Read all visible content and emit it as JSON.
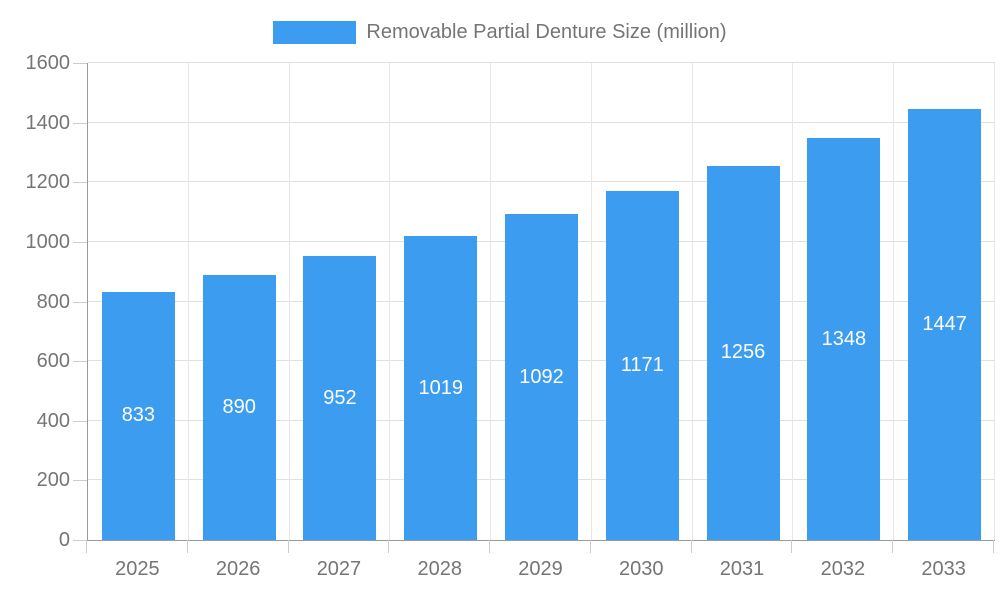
{
  "legend": {
    "label": "Removable Partial Denture Size (million)",
    "swatch_color": "#3b9cf0"
  },
  "chart_data": {
    "type": "bar",
    "title": "Removable Partial Denture Size (million)",
    "categories": [
      "2025",
      "2026",
      "2027",
      "2028",
      "2029",
      "2030",
      "2031",
      "2032",
      "2033"
    ],
    "values": [
      833,
      890,
      952,
      1019,
      1092,
      1171,
      1256,
      1348,
      1447
    ],
    "xlabel": "",
    "ylabel": "",
    "ylim": [
      0,
      1600
    ],
    "yticks": [
      0,
      200,
      400,
      600,
      800,
      1000,
      1200,
      1400,
      1600
    ],
    "grid": true,
    "legend_position": "top-center",
    "bar_color": "#3b9cf0",
    "bar_label_color": "#ffffff",
    "axis_line_color": "#999999",
    "grid_color": "#e0e0e0",
    "tick_color": "#cccccc",
    "text_color": "#757575"
  }
}
